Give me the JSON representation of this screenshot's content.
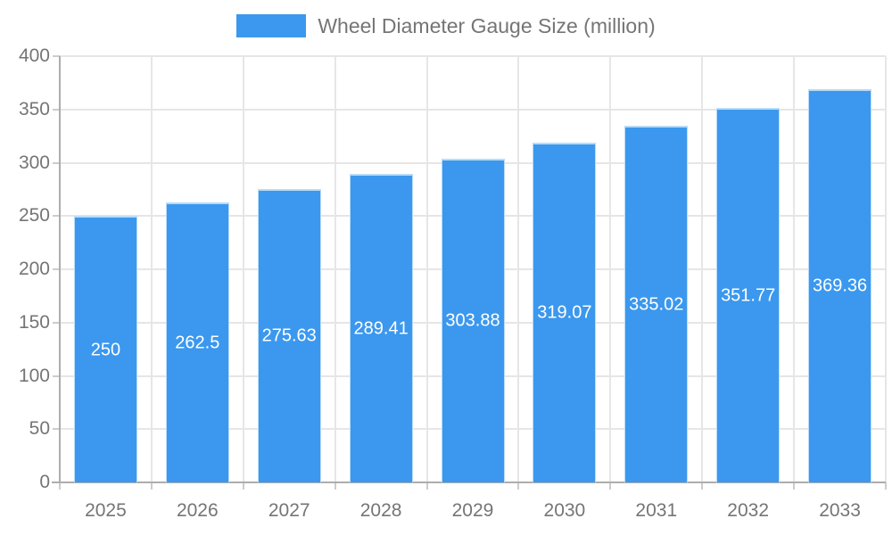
{
  "legend": {
    "label": "Wheel Diameter Gauge Size (million)"
  },
  "chart_data": {
    "type": "bar",
    "title": "Wheel Diameter Gauge Size (million)",
    "categories": [
      "2025",
      "2026",
      "2027",
      "2028",
      "2029",
      "2030",
      "2031",
      "2032",
      "2033"
    ],
    "values": [
      250,
      262.5,
      275.63,
      289.41,
      303.88,
      319.07,
      335.02,
      351.77,
      369.36
    ],
    "value_labels": [
      "250",
      "262.5",
      "275.63",
      "289.41",
      "303.88",
      "319.07",
      "335.02",
      "351.77",
      "369.36"
    ],
    "xlabel": "",
    "ylabel": "",
    "ylim": [
      0,
      400
    ],
    "ytick_step": 50,
    "ytick_labels": [
      "0",
      "50",
      "100",
      "150",
      "200",
      "250",
      "300",
      "350",
      "400"
    ],
    "grid": true,
    "legend_position": "top-center",
    "colors": {
      "bar_fill": "#3b98ee",
      "bar_border": "#b9dbf8",
      "grid_line": "#e6e6e6",
      "tick_line": "#cccccc",
      "axis_line": "#adadad",
      "label_text": "#757575",
      "value_text": "#ffffff"
    }
  }
}
